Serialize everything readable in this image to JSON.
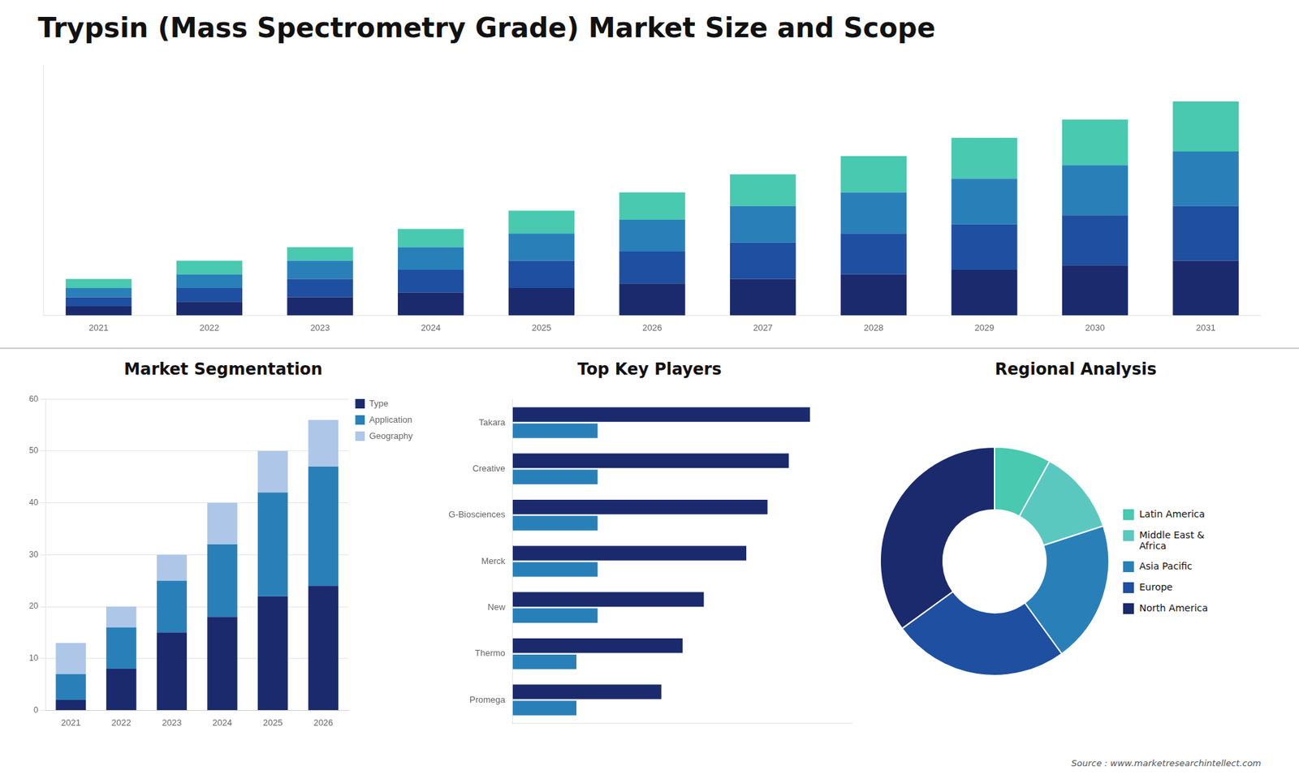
{
  "chart_data": [
    {
      "type": "bar",
      "title": "Trypsin (Mass Spectrometry Grade) Market Size and Scope",
      "annotations": [
        "Source : www.marketresearchintellect.com"
      ],
      "categories": [
        "2021",
        "2022",
        "2023",
        "2024",
        "2025",
        "2026",
        "2027",
        "2028",
        "2029",
        "2030",
        "2031"
      ],
      "stacked": true,
      "series": [
        {
          "color": "#1a2a6c",
          "values": [
            2,
            3,
            4,
            5,
            6,
            7,
            8,
            9,
            10,
            11,
            12
          ]
        },
        {
          "color": "#1e4fa0",
          "values": [
            2,
            3,
            4,
            5,
            6,
            7,
            8,
            9,
            10,
            11,
            12
          ]
        },
        {
          "color": "#2980b9",
          "values": [
            2,
            3,
            4,
            5,
            6,
            7,
            8,
            9,
            10,
            11,
            12
          ]
        },
        {
          "color": "#48c9b0",
          "values": [
            2,
            3,
            3,
            4,
            5,
            6,
            7,
            8,
            9,
            10,
            11
          ]
        }
      ],
      "ylim": [
        0,
        55
      ],
      "grid": false,
      "tick_labels": "x"
    },
    {
      "type": "bar",
      "title": "Market Segmentation",
      "categories": [
        "2021",
        "2022",
        "2023",
        "2024",
        "2025",
        "2026"
      ],
      "stacked": true,
      "series": [
        {
          "name": "Type",
          "color": "#1a2a6c",
          "values": [
            2,
            8,
            15,
            18,
            22,
            24
          ]
        },
        {
          "name": "Application",
          "color": "#2980b9",
          "values": [
            5,
            8,
            10,
            14,
            20,
            23
          ]
        },
        {
          "name": "Geography",
          "color": "#aec6e8",
          "values": [
            6,
            4,
            5,
            8,
            8,
            9
          ]
        }
      ],
      "ylim": [
        0,
        60
      ],
      "yticks": [
        0,
        10,
        20,
        30,
        40,
        50,
        60
      ],
      "grid": true,
      "legend": "right"
    },
    {
      "type": "bar",
      "title": "Top Key Players",
      "orientation": "horizontal",
      "categories": [
        "Takara",
        "Creative",
        "G-Biosciences",
        "Merck",
        "New",
        "Thermo",
        "Promega"
      ],
      "series": [
        {
          "color": "#1a2a6c",
          "values": [
            7,
            6.5,
            6,
            5.5,
            4.5,
            4,
            3.5
          ]
        },
        {
          "color": "#2980b9",
          "values": [
            2,
            2,
            2,
            2,
            2,
            1.5,
            1.5
          ]
        }
      ],
      "xlim": [
        0,
        8
      ],
      "grid": false,
      "tick_labels": "y"
    },
    {
      "type": "pie",
      "title": "Regional Analysis",
      "categories": [
        "Latin America",
        "Middle East &\nAfrica",
        "Asia Pacific",
        "Europe",
        "North America"
      ],
      "values": [
        8,
        12,
        20,
        25,
        35
      ],
      "colors": [
        "#48c9b0",
        "#5bc8c0",
        "#2980b9",
        "#1e4fa0",
        "#1a2a6c"
      ],
      "legend": "right"
    }
  ]
}
